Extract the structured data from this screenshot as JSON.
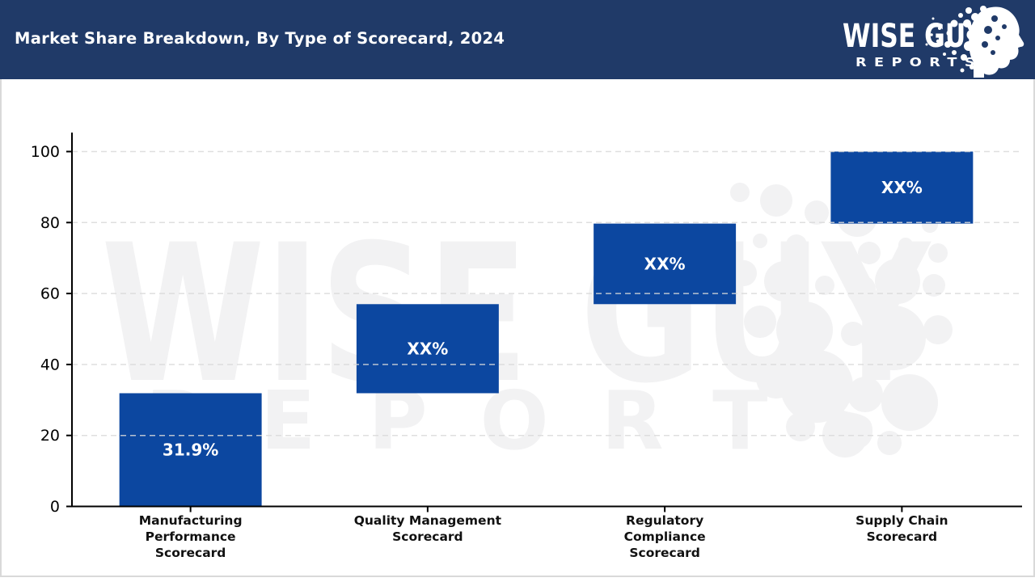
{
  "header": {
    "title": "Market Share Breakdown, By Type of Scorecard, 2024",
    "bg_color": "#203a68",
    "logo": {
      "line1": "WISE GUY",
      "line2": "REPORTS"
    }
  },
  "watermark": {
    "line1": "WISE GUY",
    "line2": "REPORTS"
  },
  "chart_data": {
    "type": "bar",
    "subtype": "waterfall",
    "title": "Market Share Breakdown, By Type of Scorecard, 2024",
    "categories": [
      "Manufacturing Performance Scorecard",
      "Quality Management Scorecard",
      "Regulatory Compliance Scorecard",
      "Supply Chain Scorecard"
    ],
    "category_label_lines": [
      [
        "Manufacturing",
        "Performance",
        "Scorecard"
      ],
      [
        "Quality Management",
        "Scorecard"
      ],
      [
        "Regulatory",
        "Compliance",
        "Scorecard"
      ],
      [
        "Supply Chain",
        "Scorecard"
      ]
    ],
    "bars": [
      {
        "start": 0,
        "end": 31.9,
        "value_estimate": 31.9,
        "label": "31.9%"
      },
      {
        "start": 31.9,
        "end": 57.0,
        "value_estimate": 25.1,
        "label": "XX%"
      },
      {
        "start": 57.0,
        "end": 79.7,
        "value_estimate": 22.7,
        "label": "XX%"
      },
      {
        "start": 79.7,
        "end": 100,
        "value_estimate": 20.3,
        "label": "XX%"
      }
    ],
    "xlabel": "",
    "ylabel": "",
    "ylim": [
      0,
      104
    ],
    "yticks": [
      0,
      20,
      40,
      60,
      80,
      100
    ],
    "grid": "horizontal dashed, drawn over bars",
    "legend": "none",
    "colors": {
      "bar": "#0c47a0",
      "bar_label": "#ffffff",
      "axis": "#000000",
      "tick_label": "#000000",
      "category_label": "#111111",
      "gridline": "#d9d9d9",
      "watermark": "#f2f2f3",
      "frame": "#d9d9d9"
    }
  }
}
